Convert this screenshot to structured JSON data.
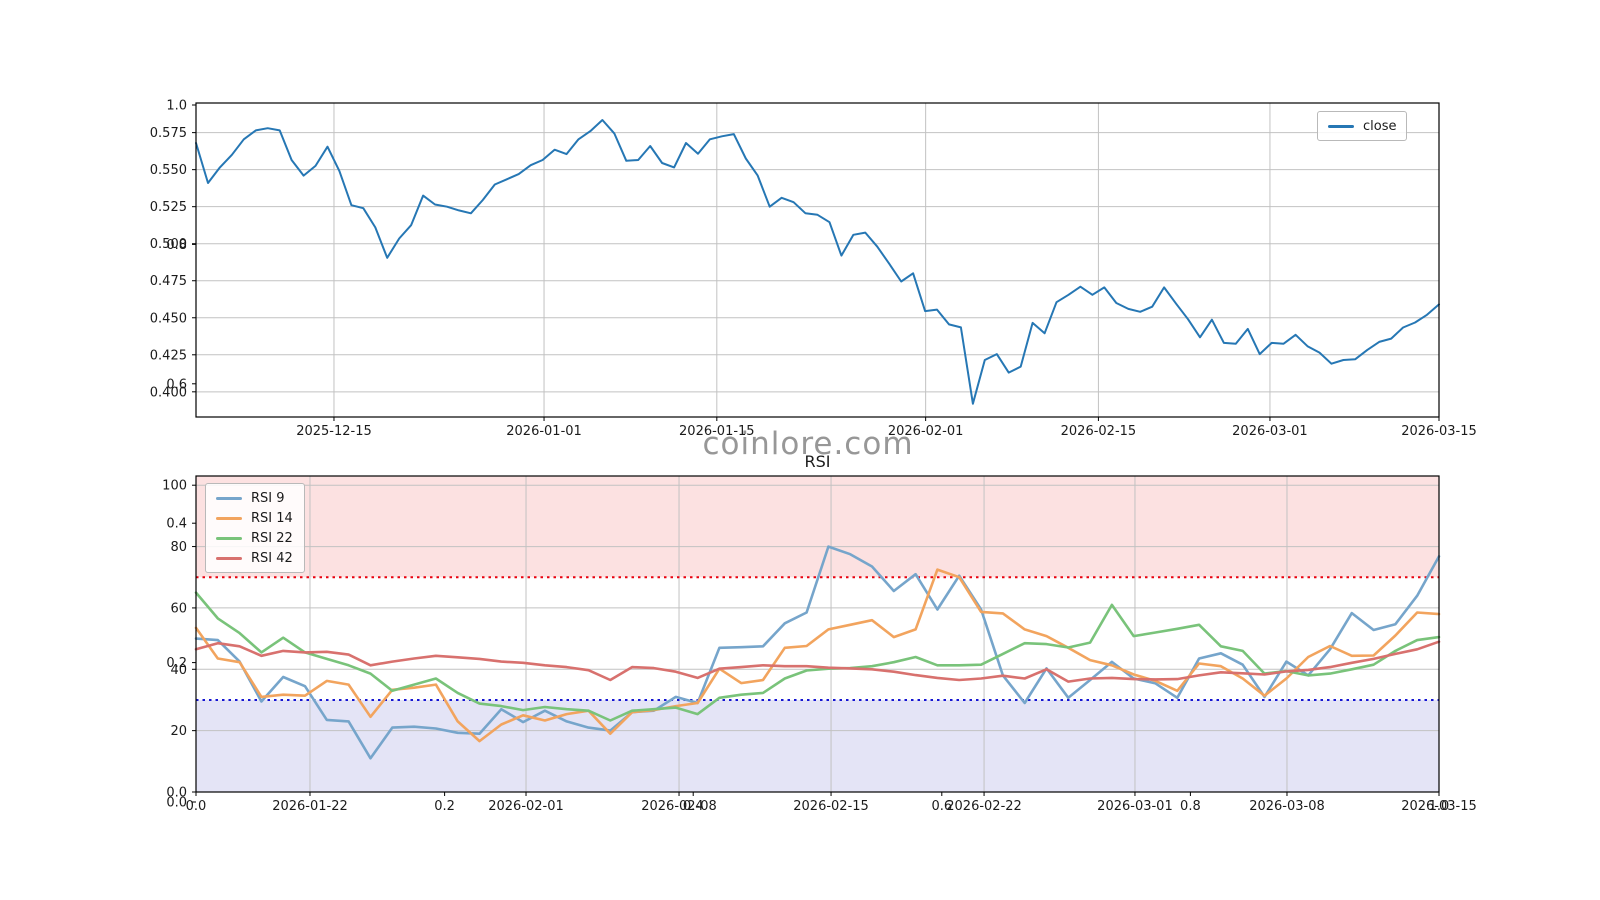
{
  "watermark": "coinlore.com",
  "colors": {
    "close": "#2677b4",
    "rsi9": "#76a5cb",
    "rsi14": "#f2a45e",
    "rsi22": "#79c37a",
    "rsi42": "#d8716e",
    "grid": "#c2c2c2",
    "frame": "#000000",
    "tick_text": "#1b1b1b",
    "overbought_fill": "#fce1e1",
    "oversold_fill": "#e4e4f6",
    "overbought_line": "#e8000d",
    "oversold_line": "#1414d2",
    "watermark_text": "#8c8c8c"
  },
  "chart_data": [
    {
      "id": "price",
      "type": "line",
      "title": "",
      "legend_position": "upper right",
      "grid": true,
      "ylim": [
        0.383,
        0.595
      ],
      "legend": [
        {
          "label": "close",
          "color": "#2677b4"
        }
      ],
      "y_ticks": [
        {
          "label": "0.575",
          "value": 0.575
        },
        {
          "label": "0.550",
          "value": 0.55
        },
        {
          "label": "0.525",
          "value": 0.525
        },
        {
          "label": "0.500",
          "value": 0.5
        },
        {
          "label": "0.475",
          "value": 0.475
        },
        {
          "label": "0.450",
          "value": 0.45
        },
        {
          "label": "0.425",
          "value": 0.425
        },
        {
          "label": "0.400",
          "value": 0.4
        }
      ],
      "overlay_y_ticks": [
        {
          "label": "1.0",
          "value": 1.0
        },
        {
          "label": "0.8",
          "value": 0.8
        },
        {
          "label": "0.6",
          "value": 0.6
        }
      ],
      "x_ticks": [
        {
          "label": "2025-12-15",
          "pos": 0.111
        },
        {
          "label": "2026-01-01",
          "pos": 0.28
        },
        {
          "label": "2026-01-15",
          "pos": 0.419
        },
        {
          "label": "2026-02-01",
          "pos": 0.587
        },
        {
          "label": "2026-02-15",
          "pos": 0.726
        },
        {
          "label": "2026-03-01",
          "pos": 0.864
        },
        {
          "label": "2026-03-15",
          "pos": 1.0
        }
      ],
      "series": [
        {
          "name": "close",
          "color": "#2677b4",
          "width": 2,
          "values": [
            0.568,
            0.541,
            0.5515,
            0.56,
            0.5705,
            0.5765,
            0.578,
            0.5765,
            0.5565,
            0.546,
            0.5525,
            0.5655,
            0.549,
            0.526,
            0.524,
            0.511,
            0.4905,
            0.5035,
            0.5125,
            0.5325,
            0.5265,
            0.525,
            0.5225,
            0.5205,
            0.5295,
            0.54,
            0.5435,
            0.547,
            0.553,
            0.5565,
            0.5635,
            0.5605,
            0.5705,
            0.576,
            0.5835,
            0.5745,
            0.556,
            0.5565,
            0.566,
            0.5545,
            0.5515,
            0.568,
            0.5608,
            0.5705,
            0.5725,
            0.574,
            0.5575,
            0.546,
            0.525,
            0.531,
            0.528,
            0.5205,
            0.5195,
            0.5145,
            0.492,
            0.506,
            0.5075,
            0.498,
            0.4865,
            0.4745,
            0.48,
            0.4545,
            0.4555,
            0.4455,
            0.4435,
            0.392,
            0.4215,
            0.4255,
            0.413,
            0.417,
            0.4465,
            0.4395,
            0.4605,
            0.4655,
            0.471,
            0.4655,
            0.4705,
            0.46,
            0.456,
            0.454,
            0.4575,
            0.4705,
            0.4595,
            0.449,
            0.4368,
            0.4487,
            0.433,
            0.4324,
            0.4425,
            0.4255,
            0.433,
            0.4325,
            0.4385,
            0.4308,
            0.4265,
            0.419,
            0.4215,
            0.422,
            0.4283,
            0.4337,
            0.4359,
            0.4434,
            0.4468,
            0.452,
            0.459
          ]
        }
      ]
    },
    {
      "id": "rsi",
      "type": "line",
      "title": "RSI",
      "legend_position": "upper left",
      "grid": true,
      "ylim": [
        0,
        103
      ],
      "legend": [
        {
          "label": "RSI 9",
          "color": "#76a5cb"
        },
        {
          "label": "RSI 14",
          "color": "#f2a45e"
        },
        {
          "label": "RSI 22",
          "color": "#79c37a"
        },
        {
          "label": "RSI 42",
          "color": "#d8716e"
        }
      ],
      "bands": [
        {
          "name": "overbought",
          "from": 70,
          "to": 103,
          "fill": "#fce1e1"
        },
        {
          "name": "oversold",
          "from": 0,
          "to": 30,
          "fill": "#e4e4f6"
        }
      ],
      "hlines": [
        {
          "name": "overbought-threshold",
          "value": 70,
          "color": "#e8000d"
        },
        {
          "name": "oversold-threshold",
          "value": 30,
          "color": "#1414d2"
        }
      ],
      "y_ticks": [
        {
          "label": "100",
          "value": 100
        },
        {
          "label": "80",
          "value": 80
        },
        {
          "label": "60",
          "value": 60
        },
        {
          "label": "40",
          "value": 40
        },
        {
          "label": "20",
          "value": 20
        },
        {
          "label": "0.0",
          "value": 0
        }
      ],
      "overlay_y_ticks": [
        {
          "label": "0.4",
          "value": 0.4
        },
        {
          "label": "0.2",
          "value": 0.2
        },
        {
          "label": "0.0",
          "value": 0.0
        }
      ],
      "x_ticks": [
        {
          "label": "2026-01-22",
          "pos": 0.0917
        },
        {
          "label": "2026-02-01",
          "pos": 0.2655
        },
        {
          "label": "2026-02-08",
          "pos": 0.3886
        },
        {
          "label": "2026-02-15",
          "pos": 0.5109
        },
        {
          "label": "2026-02-22",
          "pos": 0.634
        },
        {
          "label": "2026-03-01",
          "pos": 0.7554
        },
        {
          "label": "2026-03-08",
          "pos": 0.8777
        },
        {
          "label": "2026-03-15",
          "pos": 1.0
        }
      ],
      "overlay_x_ticks": [
        {
          "label": "0.0",
          "pos": 0.0
        },
        {
          "label": "0.2",
          "pos": 0.2
        },
        {
          "label": "0.4",
          "pos": 0.4
        },
        {
          "label": "0.6",
          "pos": 0.6
        },
        {
          "label": "0.8",
          "pos": 0.8
        },
        {
          "label": "1.0",
          "pos": 1.0
        }
      ],
      "series": [
        {
          "name": "RSI 9",
          "color": "#76a5cb",
          "width": 2.6,
          "values": [
            50,
            49.5,
            42.5,
            29.5,
            37.5,
            34.5,
            23.5,
            23,
            11,
            21,
            21.3,
            20.7,
            19.3,
            19,
            27,
            22.8,
            26.5,
            23,
            21,
            20,
            26,
            26.5,
            31,
            29,
            47,
            47.2,
            47.5,
            55,
            58.5,
            80,
            77.5,
            73.5,
            65.5,
            71,
            59.5,
            70.5,
            59.5,
            38,
            29,
            40.3,
            30.7,
            36.5,
            42.4,
            37,
            35.4,
            30.7,
            43.5,
            45.2,
            41.5,
            31,
            42.5,
            38,
            46.5,
            58.3,
            52.8,
            54.7,
            64,
            76.8
          ]
        },
        {
          "name": "RSI 14",
          "color": "#f2a45e",
          "width": 2.6,
          "values": [
            53.5,
            43.5,
            42.3,
            31,
            31.7,
            31.4,
            36.2,
            35,
            24.5,
            33.3,
            34,
            35,
            23,
            16.6,
            22,
            25,
            23.3,
            25.4,
            26.5,
            19,
            26,
            26.7,
            28,
            29,
            40.2,
            35.5,
            36.5,
            47,
            47.6,
            53,
            54.5,
            56,
            50.5,
            53,
            72.5,
            70,
            58.7,
            58.2,
            53,
            50.8,
            47,
            43,
            41.3,
            38.3,
            36.2,
            33,
            41.9,
            41,
            37,
            31.4,
            37,
            44,
            47.6,
            44.4,
            44.5,
            51,
            58.5,
            58
          ]
        },
        {
          "name": "RSI 22",
          "color": "#79c37a",
          "width": 2.6,
          "values": [
            65,
            56.6,
            51.8,
            45.5,
            50.3,
            45.5,
            43.4,
            41.3,
            38.6,
            33,
            35,
            37,
            32.3,
            28.8,
            28,
            26.7,
            27.7,
            27,
            26.5,
            23.3,
            26.5,
            27,
            27.5,
            25.4,
            30.7,
            31.7,
            32.3,
            37,
            39.6,
            40.2,
            40.4,
            41,
            42.3,
            44,
            41.3,
            41.3,
            41.5,
            45,
            48.5,
            48.2,
            47.1,
            48.7,
            61,
            50.8,
            52,
            53.2,
            54.5,
            47.5,
            46,
            38.6,
            39.4,
            38,
            38.6,
            40,
            41.5,
            46,
            49.5,
            50.5
          ]
        },
        {
          "name": "RSI 42",
          "color": "#d8716e",
          "width": 2.6,
          "values": [
            46.5,
            48.5,
            47.5,
            44.4,
            46,
            45.5,
            45.7,
            44.8,
            41.3,
            42.5,
            43.5,
            44.4,
            43.9,
            43.4,
            42.5,
            42.1,
            41.3,
            40.7,
            39.7,
            36.5,
            40.7,
            40.4,
            39.2,
            37.2,
            40.2,
            40.7,
            41.3,
            41,
            41,
            40.5,
            40.3,
            40,
            39.2,
            38.1,
            37.2,
            36.5,
            37,
            37.9,
            37,
            40,
            36,
            37,
            37.2,
            36.8,
            36.7,
            36.8,
            38,
            39,
            38.7,
            38.3,
            39.3,
            39.8,
            40.7,
            42.1,
            43.4,
            45,
            46.5,
            49
          ]
        }
      ]
    }
  ]
}
